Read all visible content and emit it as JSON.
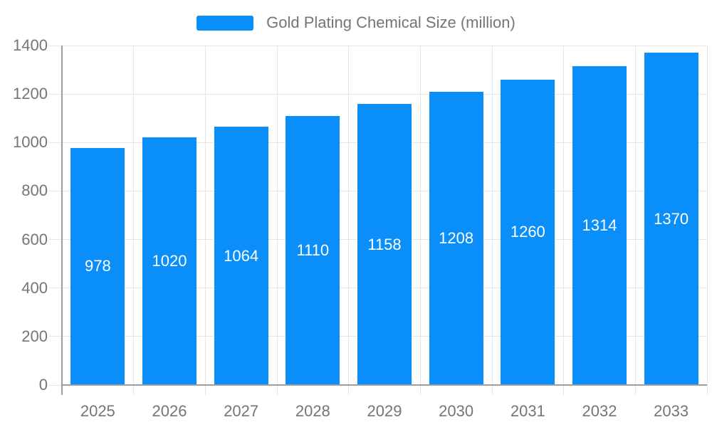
{
  "chart_data": {
    "type": "bar",
    "title": "",
    "categories": [
      "2025",
      "2026",
      "2027",
      "2028",
      "2029",
      "2030",
      "2031",
      "2032",
      "2033"
    ],
    "series": [
      {
        "name": "Gold Plating Chemical Size (million)",
        "values": [
          978,
          1020,
          1064,
          1110,
          1158,
          1208,
          1260,
          1314,
          1370
        ]
      }
    ],
    "value_labels": [
      "978",
      "1020",
      "1064",
      "1110",
      "1158",
      "1208",
      "1260",
      "1314",
      "1370"
    ],
    "value_label_position": "inside-middle",
    "xlabel": "",
    "ylabel": "",
    "ylim": [
      0,
      1400
    ],
    "yticks": [
      0,
      200,
      400,
      600,
      800,
      1000,
      1200,
      1400
    ],
    "grid": true,
    "legend_position": "top-center"
  },
  "legend": {
    "items": [
      {
        "label": "Gold Plating Chemical Size (million)",
        "color": "#0a8ef9"
      }
    ]
  },
  "colors": {
    "bar": "#0a8ef9",
    "value_label": "#ffffff",
    "axis_text": "#757575",
    "grid_line": "#e6e6e6",
    "axis_line": "#9e9e9e",
    "background": "#ffffff"
  }
}
